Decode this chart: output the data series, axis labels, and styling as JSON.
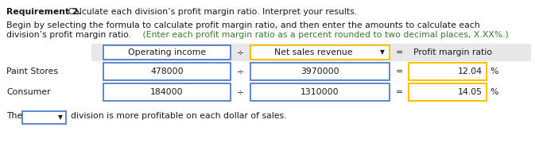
{
  "title_bold": "Requirement 2.",
  "title_normal": " Calculate each division’s profit margin ratio. Interpret your results.",
  "subtitle_line1_black": "Begin by selecting the formula to calculate profit margin ratio, and then enter the amounts to calculate each",
  "subtitle_line2_black": "division’s profit margin ratio.",
  "subtitle_line2_green": " (Enter each profit margin ratio as a percent rounded to two decimal places, X.XX%.)",
  "header_col1": "Operating income",
  "header_div": "÷",
  "header_col2": "Net sales revenue",
  "header_eq": "=",
  "header_col3": "Profit margin ratio",
  "rows": [
    {
      "label": "Paint Stores",
      "val1": "478000",
      "val2": "3970000",
      "result": "12.04"
    },
    {
      "label": "Consumer",
      "val1": "184000",
      "val2": "1310000",
      "result": "14.05"
    }
  ],
  "footer_pre": "The",
  "footer_post": "division is more profitable on each dollar of sales.",
  "bg_color": "#ffffff",
  "header_bg": "#e8e8e8",
  "blue_border": "#4472C4",
  "yellow_border": "#FFC000",
  "text_color": "#1a1a1a",
  "green_color": "#3a7d2c",
  "font_size": 7.8
}
